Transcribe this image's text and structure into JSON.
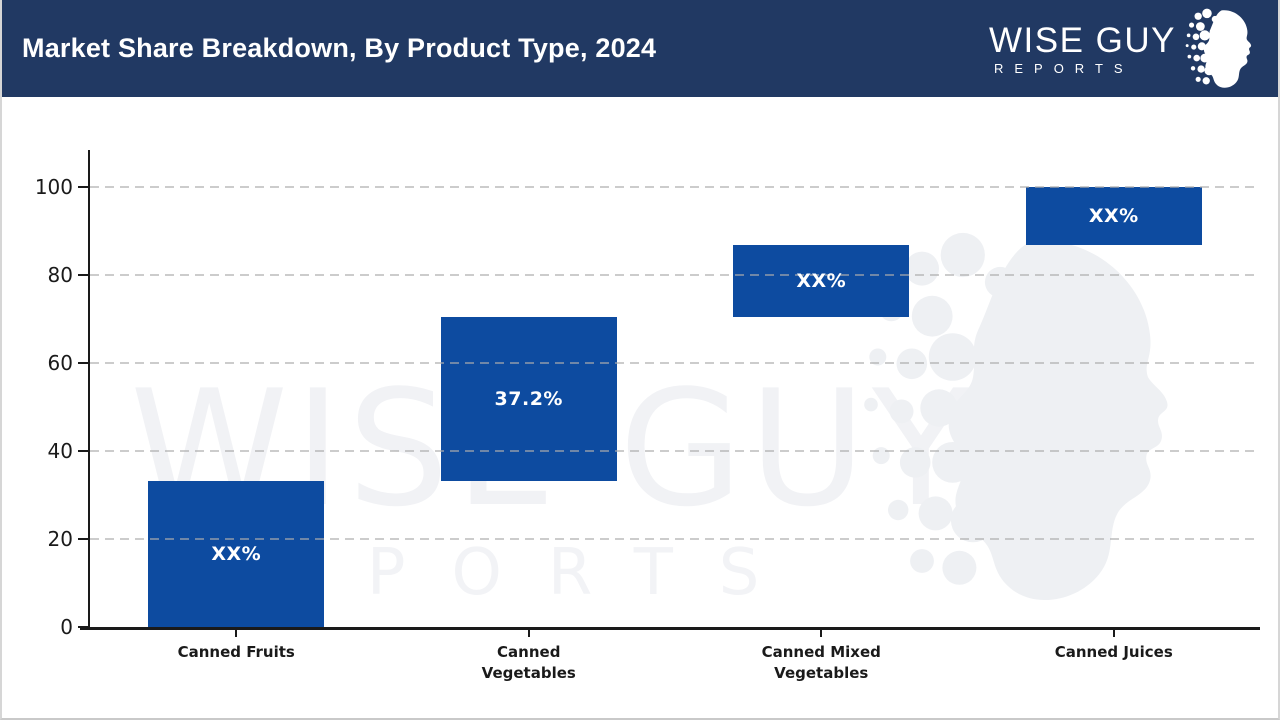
{
  "header": {
    "title": "Market Share Breakdown, By Product Type, 2024",
    "background_color": "#213963",
    "logo_line1": "WISE GUY",
    "logo_line2": "REPORTS"
  },
  "watermark": {
    "line1": "WISE GUY",
    "line2": "REPORTS"
  },
  "chart_data": {
    "type": "bar",
    "subtype": "floating-waterfall-segments",
    "title": "Market Share Breakdown, By Product Type, 2024",
    "categories": [
      "Canned Fruits",
      "Canned Vegetables",
      "Canned Mixed Vegetables",
      "Canned Juices"
    ],
    "segments": [
      {
        "category": "Canned Fruits",
        "start": 0,
        "end": 33.2,
        "label": "XX%"
      },
      {
        "category": "Canned Vegetables",
        "start": 33.2,
        "end": 70.4,
        "label": "37.2%"
      },
      {
        "category": "Canned Mixed Vegetables",
        "start": 70.4,
        "end": 86.8,
        "label": "XX%"
      },
      {
        "category": "Canned Juices",
        "start": 86.8,
        "end": 100,
        "label": "XX%"
      }
    ],
    "xlabel": "",
    "ylabel": "",
    "ylim": [
      0,
      100
    ],
    "yticks": [
      0,
      20,
      40,
      60,
      80,
      100
    ],
    "grid": "horizontal-dashed",
    "legend": "none",
    "bar_color": "#0d4ba0",
    "bar_label_color": "#ffffff",
    "axis_color": "#1a1a1a",
    "gridline_color": "#d2d2d2",
    "header_color": "#213963"
  }
}
